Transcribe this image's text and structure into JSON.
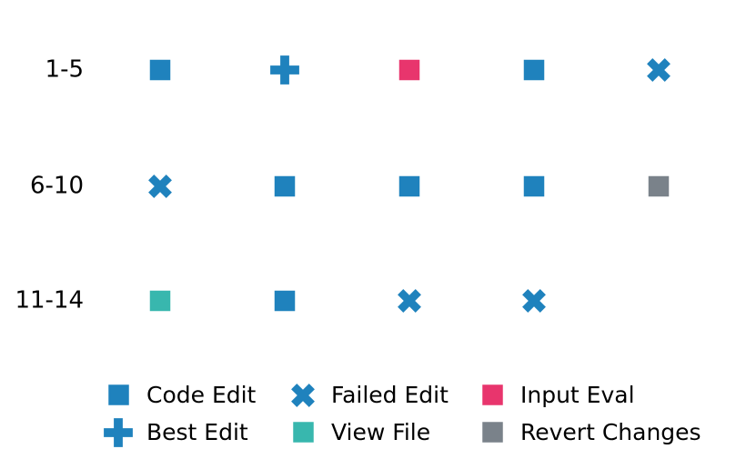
{
  "figure": {
    "background_color": "#ffffff",
    "text_color": "#000000"
  },
  "chart_data": {
    "type": "scatter",
    "grid": false,
    "legend_position": "bottom",
    "rows": [
      {
        "label": "1-5",
        "actions": [
          "code_edit",
          "best_edit",
          "input_eval",
          "code_edit",
          "failed_edit"
        ]
      },
      {
        "label": "6-10",
        "actions": [
          "failed_edit",
          "code_edit",
          "code_edit",
          "code_edit",
          "revert_changes"
        ]
      },
      {
        "label": "11-14",
        "actions": [
          "view_file",
          "code_edit",
          "failed_edit",
          "failed_edit"
        ]
      }
    ],
    "marker_types": {
      "code_edit": {
        "label": "Code Edit",
        "shape": "square",
        "color": "#1f82bd"
      },
      "failed_edit": {
        "label": "Failed Edit",
        "shape": "x",
        "color": "#1f82bd"
      },
      "input_eval": {
        "label": "Input Eval",
        "shape": "square",
        "color": "#e8356d"
      },
      "best_edit": {
        "label": "Best Edit",
        "shape": "plus",
        "color": "#1f82bd"
      },
      "view_file": {
        "label": "View File",
        "shape": "square",
        "color": "#38b7ae"
      },
      "revert_changes": {
        "label": "Revert Changes",
        "shape": "square",
        "color": "#7a828a"
      }
    },
    "legend": {
      "rows": [
        [
          "code_edit",
          "failed_edit",
          "input_eval"
        ],
        [
          "best_edit",
          "view_file",
          "revert_changes"
        ]
      ]
    }
  }
}
